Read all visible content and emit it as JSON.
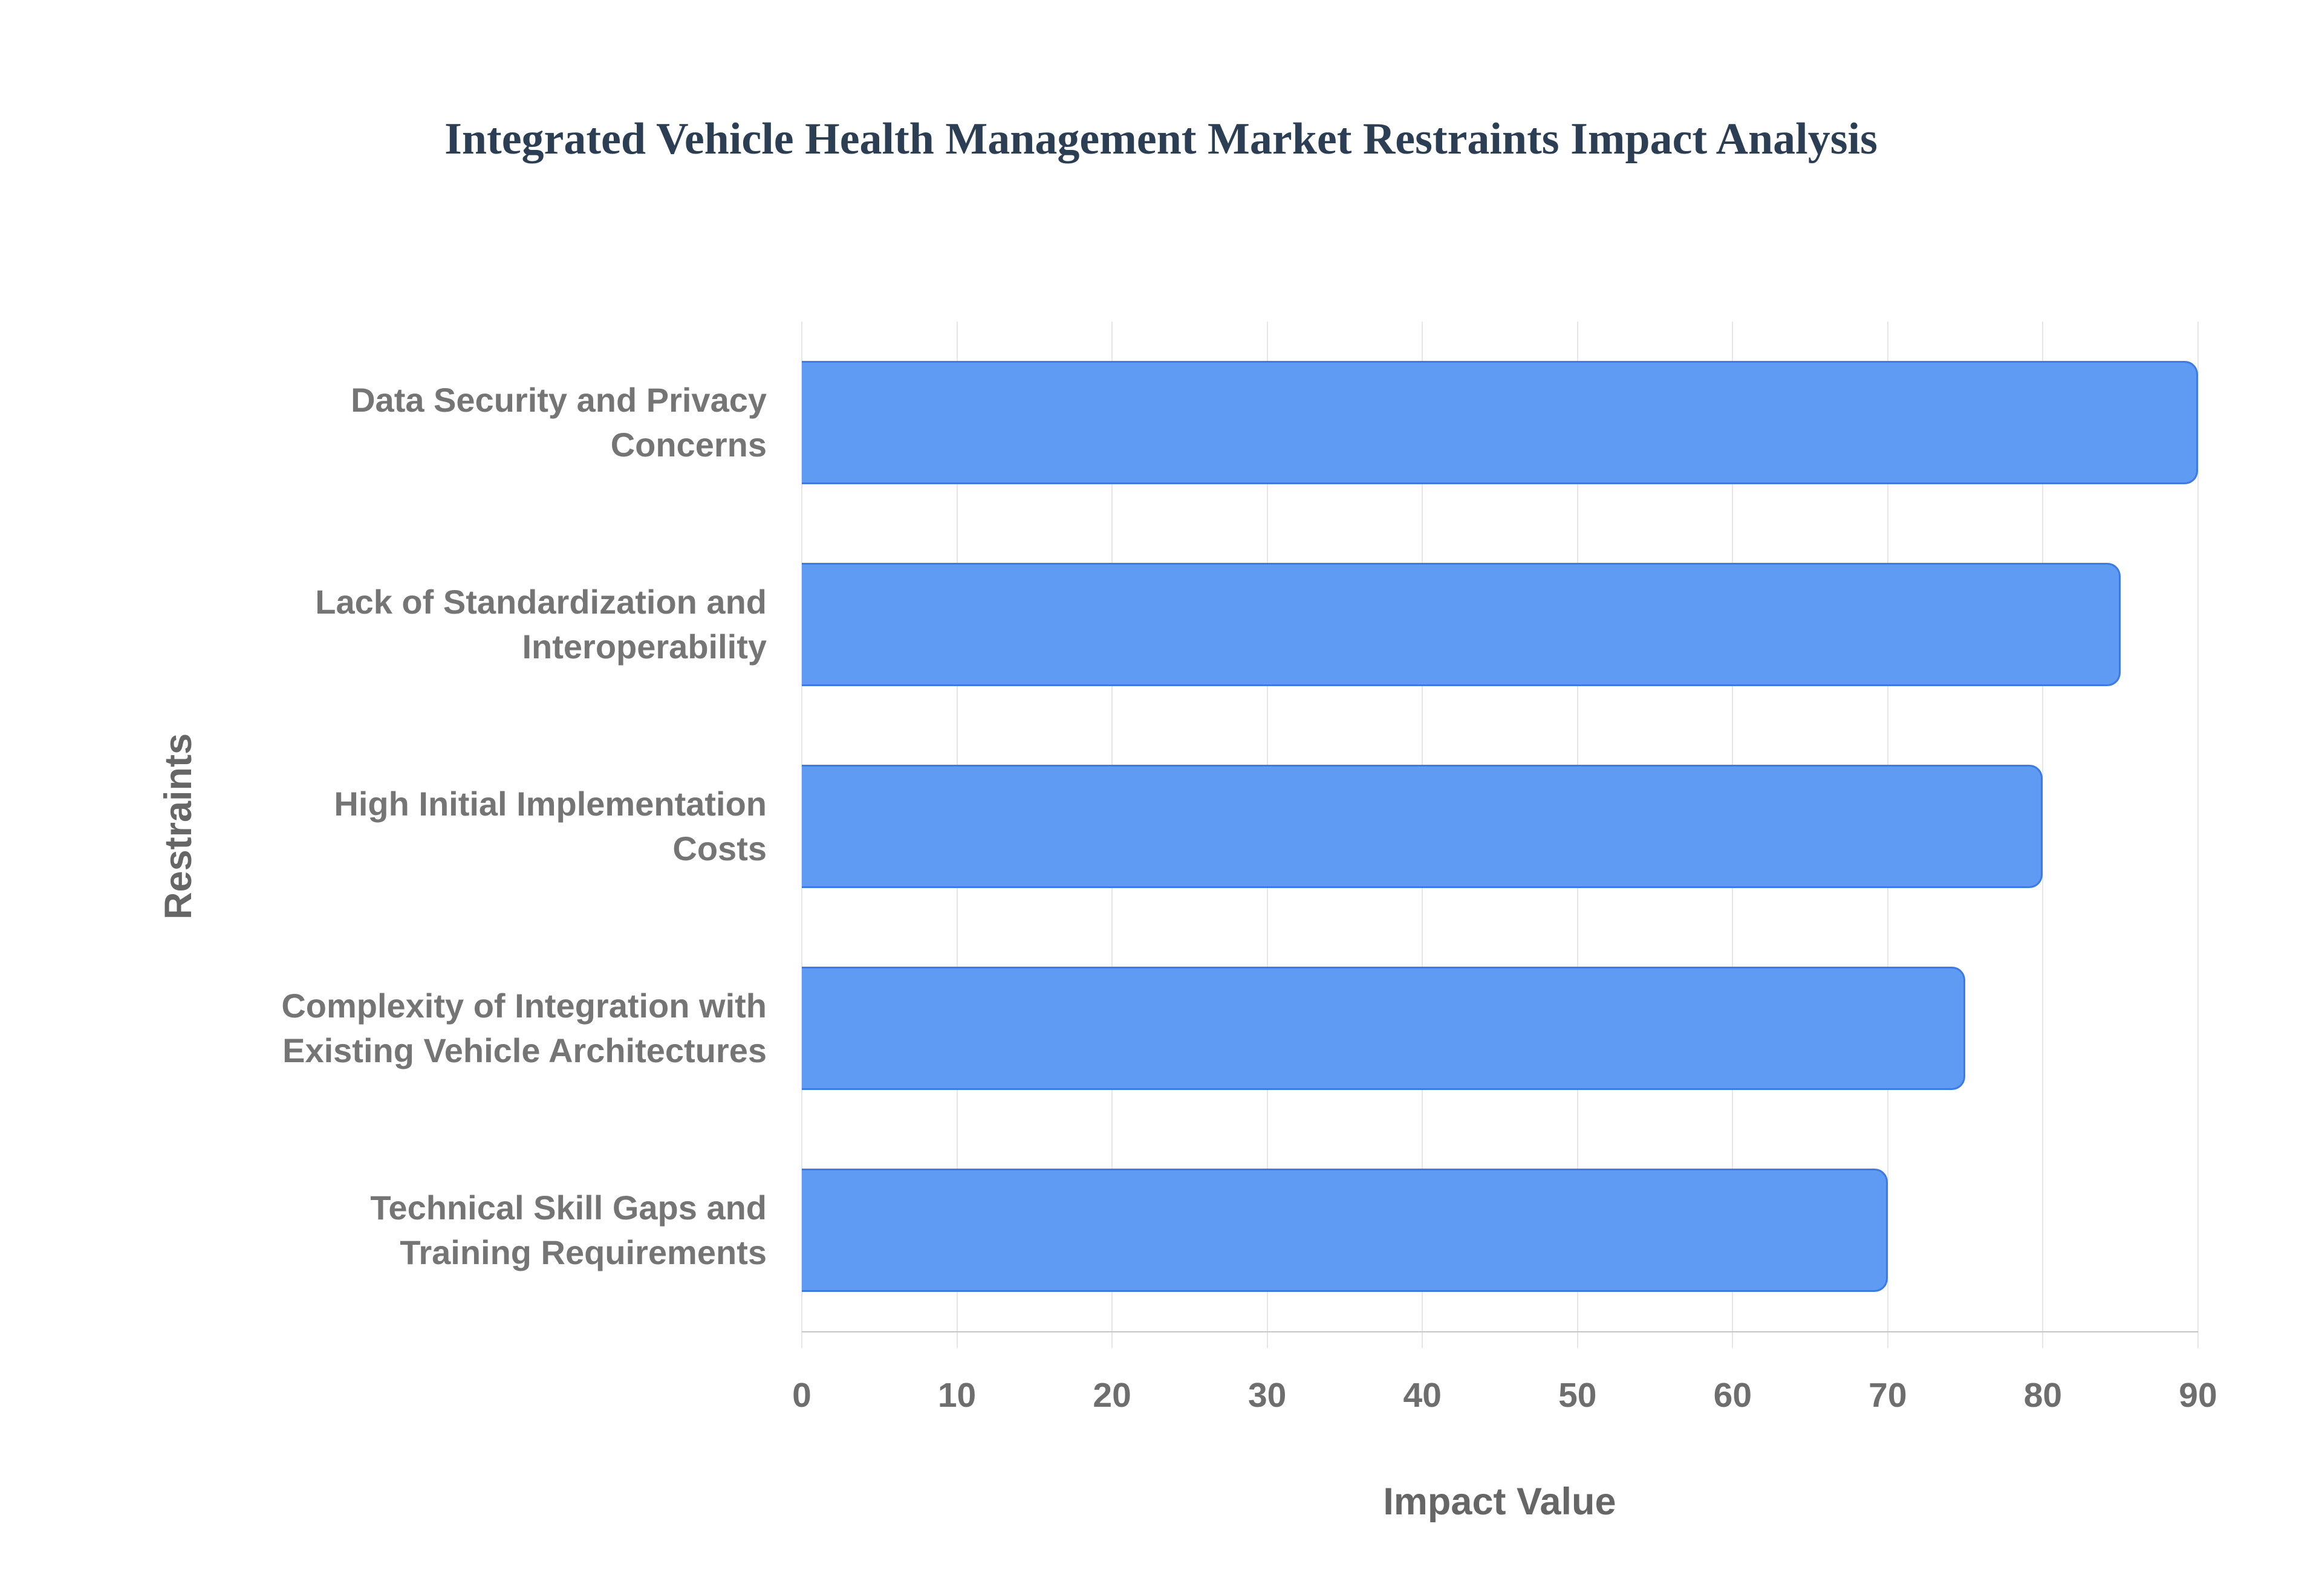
{
  "page": {
    "background": "#ffffff"
  },
  "chart_data": {
    "type": "bar",
    "orientation": "horizontal",
    "title": "Integrated Vehicle Health Management Market Restraints Impact Analysis",
    "xlabel": "Impact Value",
    "ylabel": "Restraints",
    "categories": [
      "Data Security and Privacy\nConcerns",
      "Lack of Standardization and\nInteroperability",
      "High Initial Implementation\nCosts",
      "Complexity of Integration with\nExisting Vehicle Architectures",
      "Technical Skill Gaps and\nTraining Requirements"
    ],
    "values": [
      90,
      85,
      80,
      75,
      70
    ],
    "xlim": [
      0,
      90
    ],
    "xticks": [
      0,
      10,
      20,
      30,
      40,
      50,
      60,
      70,
      80,
      90
    ],
    "grid": "vertical-only",
    "legend": "none",
    "colors": {
      "bar_fill": "#5f9af3",
      "bar_border": "#3d7ae6",
      "grid_line": "#e6e6e6",
      "axis_line": "#c6c6c6",
      "title_text": "#2b3e54",
      "label_text": "#757575",
      "axis_title_text": "#666666"
    }
  }
}
